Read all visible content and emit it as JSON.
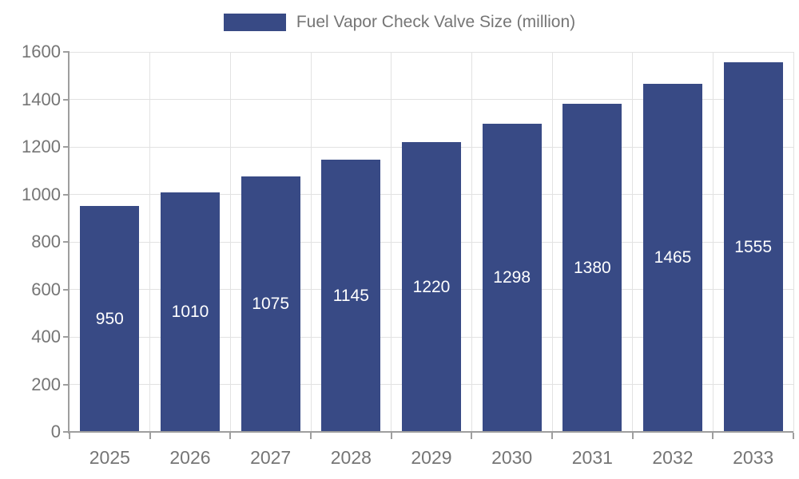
{
  "chart_data": {
    "type": "bar",
    "title": "Fuel Vapor Check Valve Size (million)",
    "categories": [
      "2025",
      "2026",
      "2027",
      "2028",
      "2029",
      "2030",
      "2031",
      "2032",
      "2033"
    ],
    "values": [
      950,
      1010,
      1075,
      1145,
      1220,
      1298,
      1380,
      1465,
      1555
    ],
    "series": [
      {
        "name": "Fuel Vapor Check Valve Size (million)",
        "values": [
          950,
          1010,
          1075,
          1145,
          1220,
          1298,
          1380,
          1465,
          1555
        ]
      }
    ],
    "xlabel": "",
    "ylabel": "",
    "ylim": [
      0,
      1600
    ],
    "ytick_step": 200,
    "ytick_labels": [
      "0",
      "200",
      "400",
      "600",
      "800",
      "1000",
      "1200",
      "1400",
      "1600"
    ],
    "grid": true,
    "legend_position": "top-center",
    "value_labels_inside_bars": true,
    "colors": {
      "bar": "#384A85",
      "bar_value_text": "#ffffff",
      "axis_text": "#757575",
      "legend_text": "#757575",
      "gridline": "#e2e2e2",
      "axis_line": "#9e9e9e",
      "background": "#ffffff"
    }
  }
}
